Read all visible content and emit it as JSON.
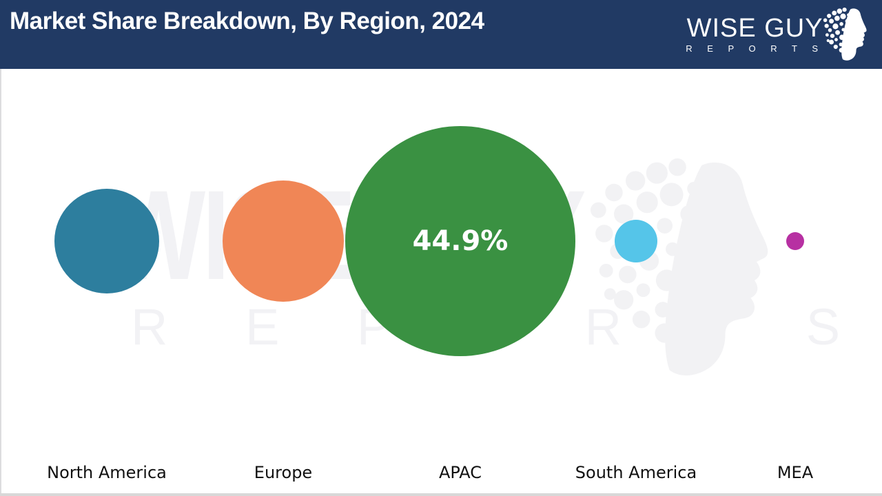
{
  "header": {
    "title": "Market Share Breakdown, By Region, 2024",
    "logo": {
      "name": "WISE GUY",
      "sub": "R E P O R T S"
    }
  },
  "watermark": {
    "line1": "WISE GUY",
    "line2": "R E P O R T S"
  },
  "chart_data": {
    "type": "bubble",
    "title": "Market Share Breakdown, By Region, 2024",
    "categories": [
      "North America",
      "Europe",
      "APAC",
      "South America",
      "MEA"
    ],
    "series": [
      {
        "name": "Market Share (%)",
        "values": [
          20.4,
          23.6,
          44.9,
          8.3,
          3.6
        ]
      }
    ],
    "value_labels": [
      "",
      "",
      "44.9%",
      "",
      ""
    ],
    "colors": [
      "#2D7E9E",
      "#F08656",
      "#3A9142",
      "#55C5E9",
      "#B730A2"
    ],
    "legend": "none",
    "axes": "none",
    "encoding": "bubble radius proportional to value; only APAC value labeled on chart"
  },
  "colors": {
    "header_bg": "#213A64",
    "header_text": "#FFFFFF",
    "bubble_value_text": "#FFFFFF",
    "category_label_text": "#111111",
    "watermark": "#F2F2F5",
    "bottom_bar": "#D8D8D8"
  }
}
